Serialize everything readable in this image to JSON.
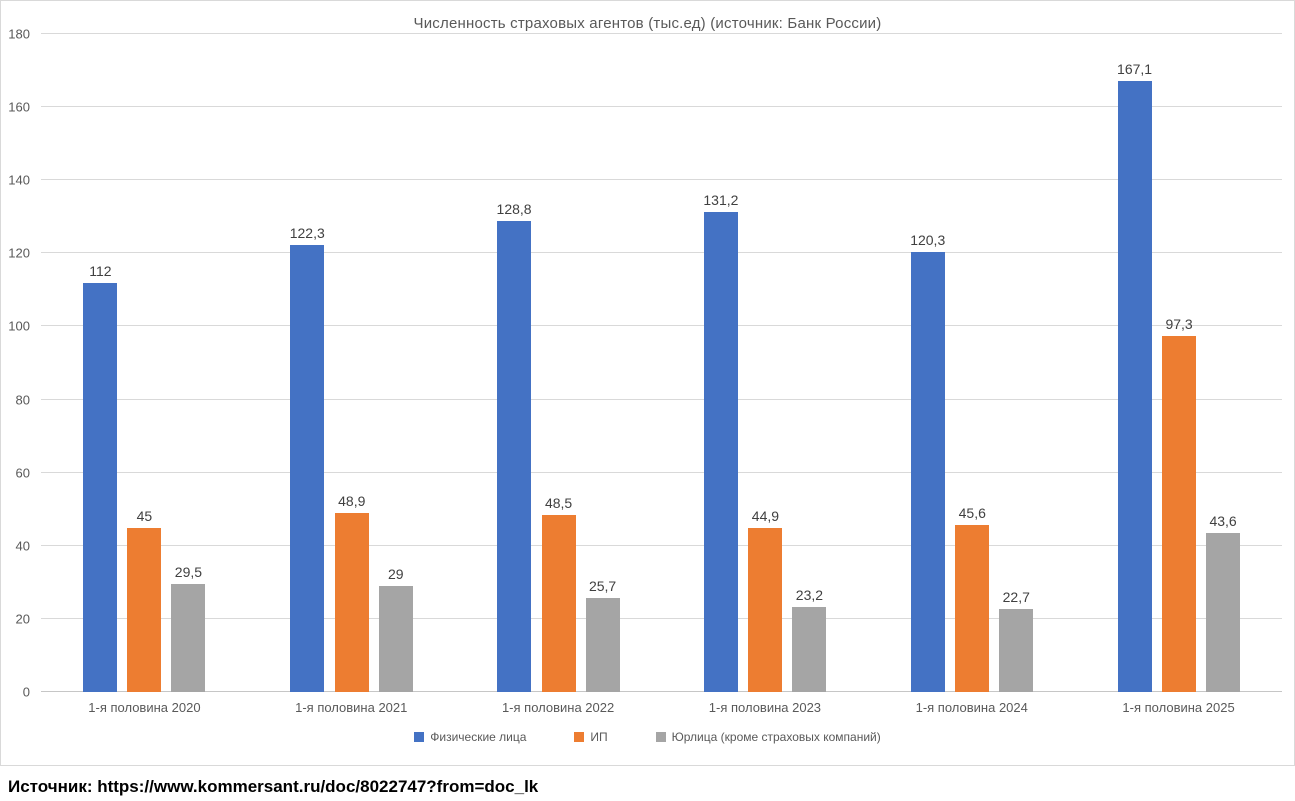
{
  "chart_data": {
    "type": "bar",
    "title": "Численность страховых агентов (тыс.ед) (источник: Банк России)",
    "categories": [
      "1-я половина 2020",
      "1-я половина 2021",
      "1-я половина 2022",
      "1-я половина 2023",
      "1-я половина 2024",
      "1-я половина 2025"
    ],
    "series": [
      {
        "name": "Физические лица",
        "color": "#4472C4",
        "values": [
          112,
          122.3,
          128.8,
          131.2,
          120.3,
          167.1
        ],
        "labels": [
          "112",
          "122,3",
          "128,8",
          "131,2",
          "120,3",
          "167,1"
        ]
      },
      {
        "name": "ИП",
        "color": "#ED7D31",
        "values": [
          45,
          48.9,
          48.5,
          44.9,
          45.6,
          97.3
        ],
        "labels": [
          "45",
          "48,9",
          "48,5",
          "44,9",
          "45,6",
          "97,3"
        ]
      },
      {
        "name": "Юрлица (кроме страховых компаний)",
        "color": "#A5A5A5",
        "values": [
          29.5,
          29,
          25.7,
          23.2,
          22.7,
          43.6
        ],
        "labels": [
          "29,5",
          "29",
          "25,7",
          "23,2",
          "22,7",
          "43,6"
        ]
      }
    ],
    "ylim": [
      0,
      180
    ],
    "ytick_step": 20,
    "grid": true,
    "legend_position": "bottom",
    "colors": {
      "gridline": "#d9d9d9",
      "axis_line": "#c6c6c6",
      "title_text": "#595959",
      "tick_text": "#595959",
      "value_label_text": "#404040"
    }
  },
  "source_line": "Источник: https://www.kommersant.ru/doc/8022747?from=doc_lk"
}
